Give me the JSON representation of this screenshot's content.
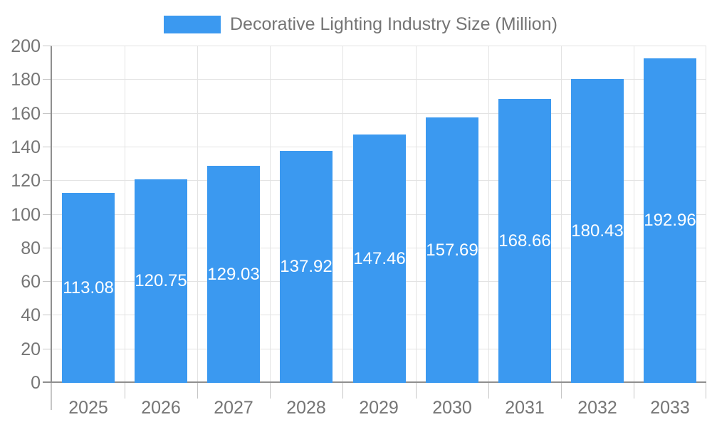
{
  "chart_data": {
    "type": "bar",
    "title": "Decorative Lighting Industry Size (Million)",
    "legend": {
      "position": "top",
      "entries": [
        "Decorative Lighting Industry Size (Million)"
      ]
    },
    "categories": [
      "2025",
      "2026",
      "2027",
      "2028",
      "2029",
      "2030",
      "2031",
      "2032",
      "2033"
    ],
    "series": [
      {
        "name": "Decorative Lighting Industry Size (Million)",
        "values": [
          113.08,
          120.75,
          129.03,
          137.92,
          147.46,
          157.69,
          168.66,
          180.43,
          192.96
        ]
      }
    ],
    "value_labels": [
      "113.08",
      "120.75",
      "129.03",
      "137.92",
      "147.46",
      "157.69",
      "168.66",
      "180.43",
      "192.96"
    ],
    "xlabel": "",
    "ylabel": "",
    "ylim": [
      0,
      200
    ],
    "yticks": [
      0,
      20,
      40,
      60,
      80,
      100,
      120,
      140,
      160,
      180,
      200
    ],
    "grid": true,
    "colors": {
      "bar": "#3B99F0",
      "value_label": "#FFFFFF",
      "axis_text": "#757575",
      "axis_line": "#8F8F8F",
      "grid_line": "#E3E3E3",
      "tick_line": "#C6C6C6",
      "background": "#FFFFFF"
    }
  }
}
